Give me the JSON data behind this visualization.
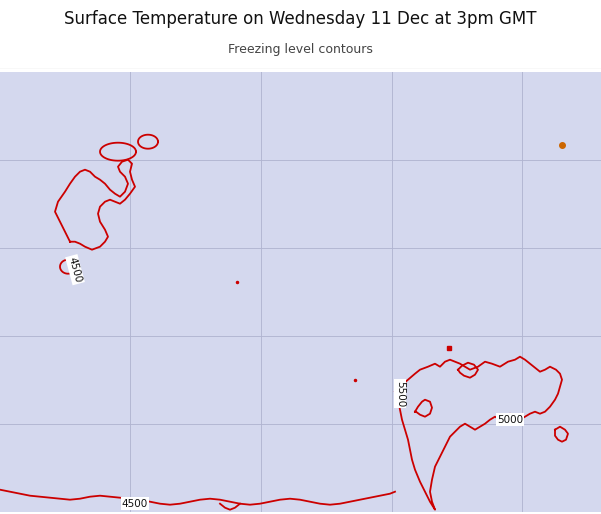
{
  "title": "Surface Temperature on Wednesday 11 Dec at 3pm GMT",
  "subtitle": "Freezing level contours",
  "title_fontsize": 12,
  "subtitle_fontsize": 9,
  "map_bg": "#d4d8ee",
  "line_color": "#cc0000",
  "label_color": "#111111",
  "grid_color": "#b0b4d0",
  "figsize": [
    6.01,
    5.14
  ],
  "dpi": 100,
  "white": "#ffffff",
  "dot_color": "#cc6600"
}
